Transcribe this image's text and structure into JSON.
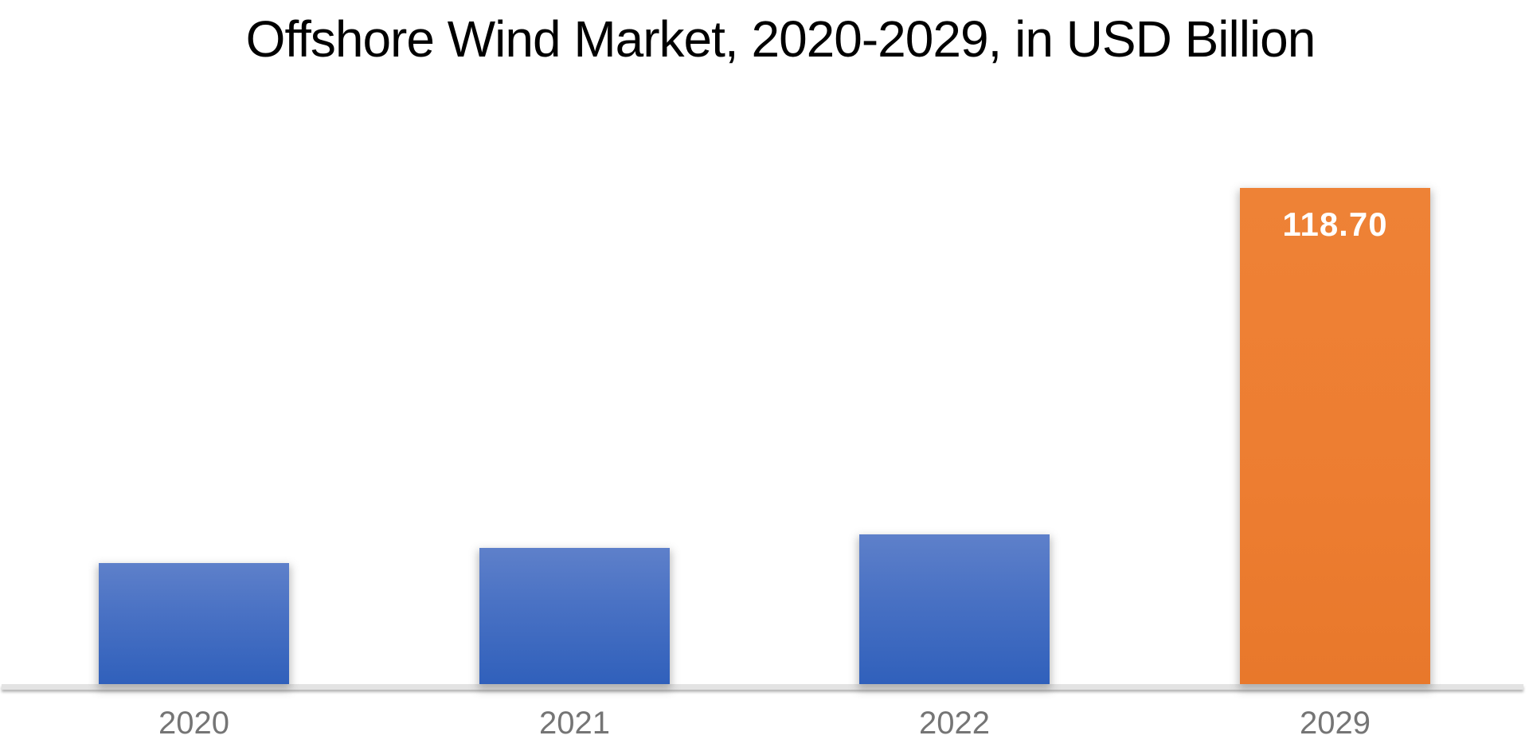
{
  "title": "Offshore Wind Market, 2020-2029, in USD Billion",
  "chart_data": {
    "type": "bar",
    "title": "Offshore Wind Market, 2020-2029, in USD Billion",
    "categories": [
      "2020",
      "2021",
      "2022",
      "2029"
    ],
    "values": [
      29.0,
      32.5,
      35.8,
      118.7
    ],
    "value_labels": [
      "",
      "",
      "",
      "118.70"
    ],
    "xlabel": "",
    "ylabel": "",
    "ylim": [
      0,
      127
    ],
    "grid": false,
    "legend": false,
    "y_axis_visible": false,
    "highlight_index": 3,
    "colors": {
      "bar_blue_top": "#5e80ca",
      "bar_blue_bottom": "#3060bb",
      "bar_highlight_orange": "#ed7d31",
      "axis_line": "#e3e3e3",
      "tick_label": "#757575",
      "data_label": "#ffffff",
      "title": "#000000",
      "background": "#ffffff"
    }
  }
}
